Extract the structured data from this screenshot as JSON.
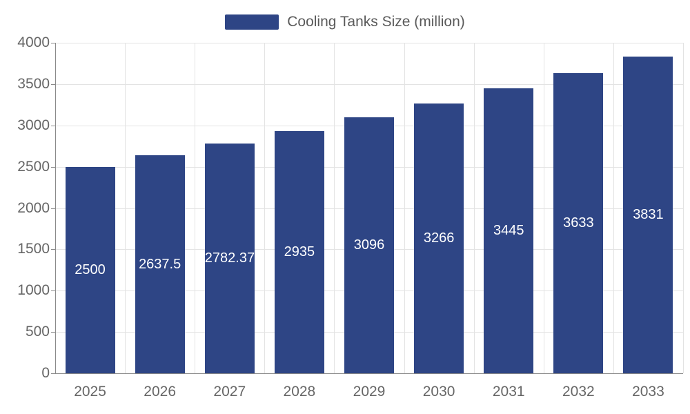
{
  "legend": {
    "label": "Cooling Tanks Size (million)"
  },
  "colors": {
    "bar": "#2e4585",
    "grid": "#e3e3e3",
    "axis": "#8a8a8a",
    "tick_text": "#666666",
    "bar_label_text": "#ffffff"
  },
  "chart_data": {
    "type": "bar",
    "title": "Cooling Tanks Size (million)",
    "categories": [
      "2025",
      "2026",
      "2027",
      "2028",
      "2029",
      "2030",
      "2031",
      "2032",
      "2033"
    ],
    "series": [
      {
        "name": "Cooling Tanks Size (million)",
        "values": [
          2500,
          2637.5,
          2782.37,
          2935,
          3096,
          3266,
          3445,
          3633,
          3831
        ],
        "labels": [
          "2500",
          "2637.5",
          "2782.37",
          "2935",
          "3096",
          "3266",
          "3445",
          "3633",
          "3831"
        ]
      }
    ],
    "xlabel": "",
    "ylabel": "",
    "ylim": [
      0,
      4000
    ],
    "ytick_step": 500,
    "ytick_labels": [
      "0",
      "500",
      "1000",
      "1500",
      "2000",
      "2500",
      "3000",
      "3500",
      "4000"
    ],
    "grid": true,
    "legend_position": "top-center",
    "bar_value_label_position": "inside-center",
    "bar_value_label_color": "#ffffff"
  }
}
